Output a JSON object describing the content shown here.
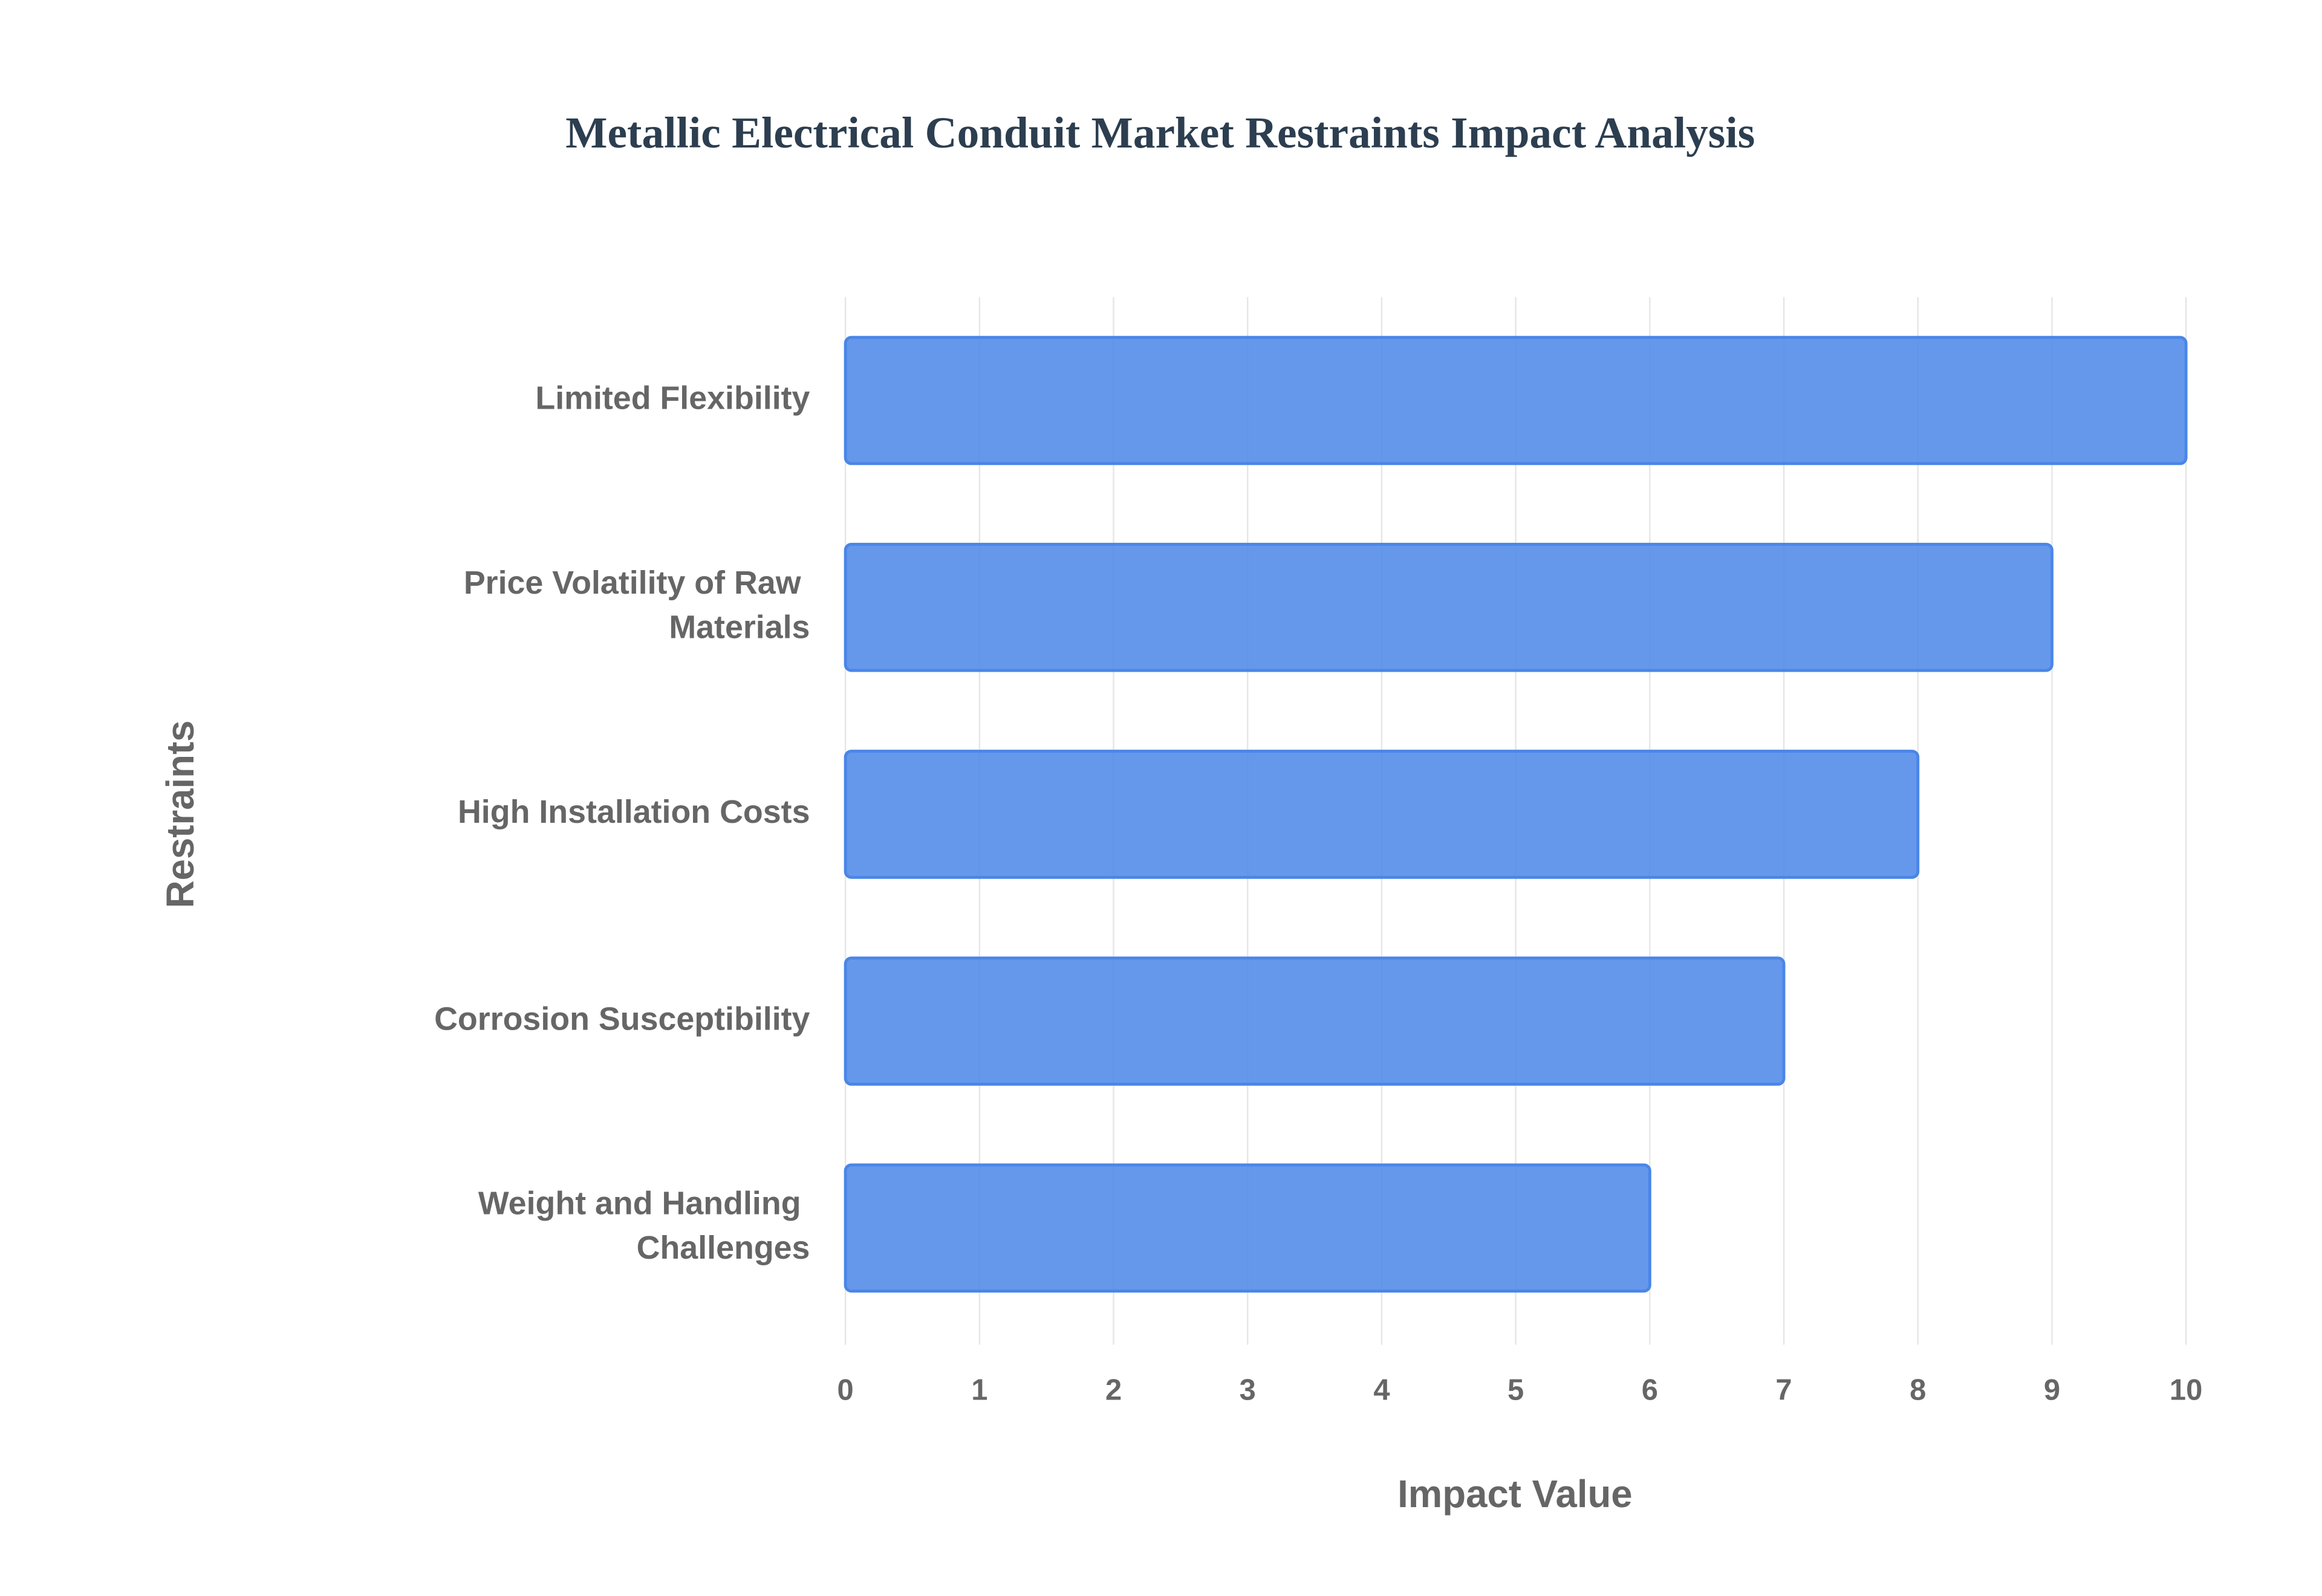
{
  "chart_data": {
    "type": "bar",
    "orientation": "horizontal",
    "title": "Metallic Electrical Conduit Market Restraints Impact Analysis",
    "x_label": "Impact Value",
    "y_label": "Restraints",
    "categories": [
      "Limited Flexibility",
      "Price Volatility of Raw Materials",
      "High Installation Costs",
      "Corrosion Susceptibility",
      "Weight and Handling Challenges"
    ],
    "values": [
      10,
      9,
      8,
      7,
      6
    ],
    "color": "#4a86e8",
    "xlim": [
      0,
      10
    ],
    "xticks": [
      0,
      1,
      2,
      3,
      4,
      5,
      6,
      7,
      8,
      9,
      10
    ],
    "grid": true
  }
}
